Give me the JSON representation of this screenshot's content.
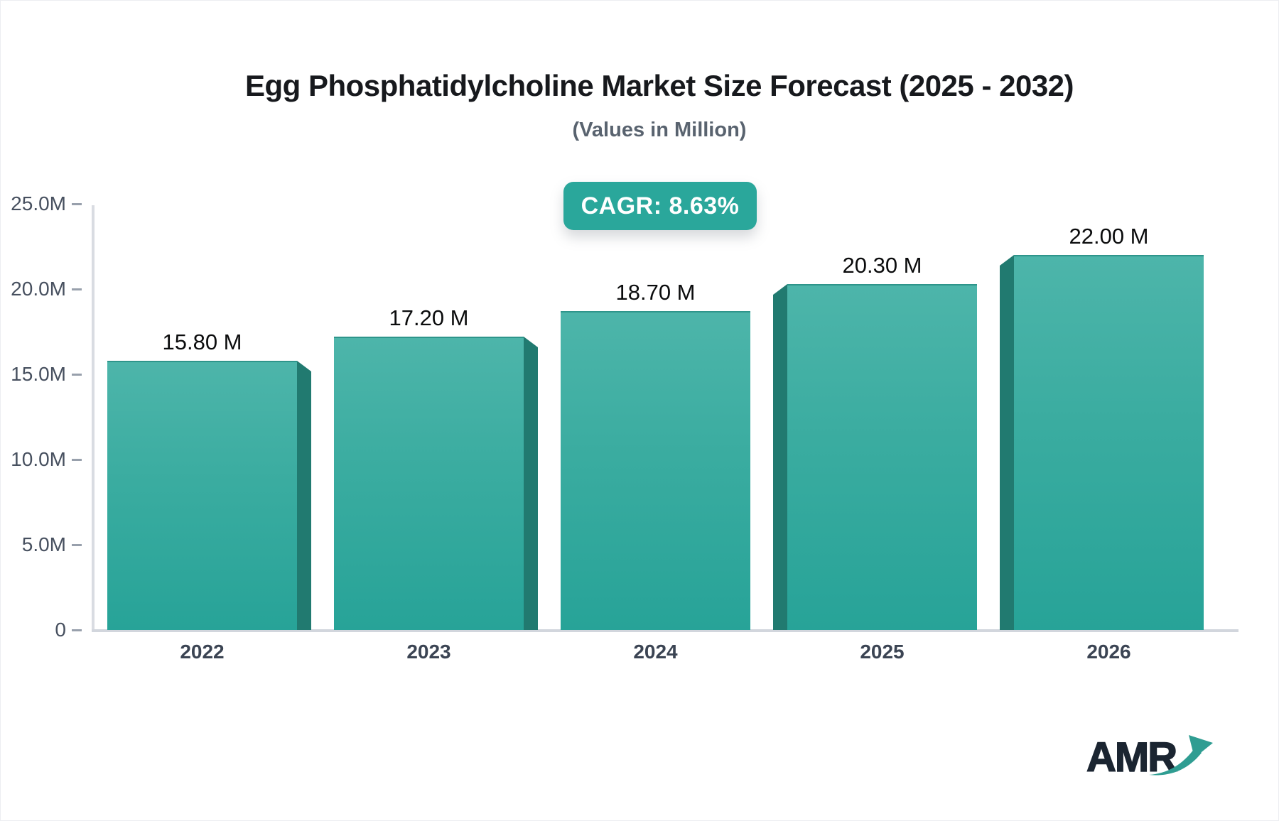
{
  "title": "Egg Phosphatidylcholine Market Size Forecast (2025 - 2032)",
  "subtitle": "(Values in Million)",
  "badge": {
    "label": "CAGR: 8.63%",
    "bg_color": "#2aa79b",
    "text_color": "#ffffff"
  },
  "chart_data": {
    "type": "bar",
    "title": "Egg Phosphatidylcholine Market Size Forecast (2025 - 2032)",
    "subtitle": "(Values in Million)",
    "categories": [
      "2022",
      "2023",
      "2024",
      "2025",
      "2026"
    ],
    "values": [
      15.8,
      17.2,
      18.7,
      20.3,
      22.0
    ],
    "value_labels": [
      "15.80 M",
      "17.20 M",
      "18.70 M",
      "20.30 M",
      "22.00 M"
    ],
    "series_name": "Market Size (Values in Million)",
    "xlabel": "",
    "ylabel": "",
    "ylim": [
      0,
      25
    ],
    "ytick_step": 5,
    "ytick_labels": [
      "0",
      "5.0M",
      "10.0M",
      "15.0M",
      "20.0M",
      "25.0M"
    ],
    "grid": false,
    "legend": false,
    "bar_style": "3d-bevel",
    "colors": {
      "bar_top": "#4db5aa",
      "bar_bottom": "#27a398",
      "bar_edge": "#2e958b",
      "bar_side_panel": "#217a70",
      "axis_line": "#d2d6dd",
      "tick_text": "#47505f",
      "category_text": "#3b4453",
      "value_label_text": "#0b0c0d"
    }
  },
  "logo": {
    "text": "AMR",
    "arrow_icon": "trend-arrow-icon",
    "text_color": "#1b2531",
    "arrow_color": "#2f9d92"
  }
}
